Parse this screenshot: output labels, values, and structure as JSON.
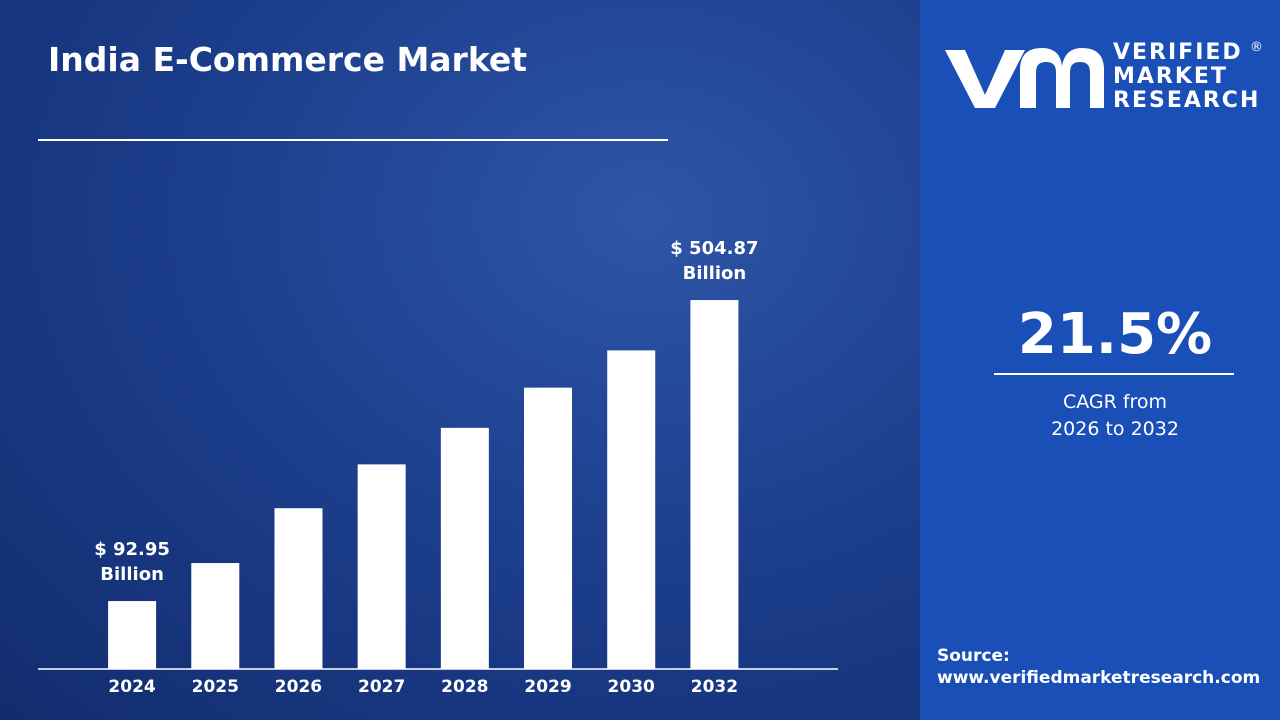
{
  "chart_data": {
    "type": "bar",
    "title": "India E-Commerce Market",
    "categories": [
      "2024",
      "2025",
      "2026",
      "2027",
      "2028",
      "2029",
      "2030",
      "2032"
    ],
    "values": [
      92.95,
      145,
      220,
      280,
      330,
      385,
      436,
      504.87
    ],
    "value_labels": [
      "$ 92.95\nBillion",
      null,
      null,
      null,
      null,
      null,
      null,
      "$ 504.87\nBillion"
    ],
    "color": "#ffffff",
    "ylim": [
      0,
      520
    ]
  },
  "logo": {
    "lines": [
      "VERIFIED",
      "MARKET",
      "RESEARCH"
    ],
    "mark": "®"
  },
  "stat": {
    "value": "21.5%",
    "caption": "CAGR from\n2026 to 2032"
  },
  "source": {
    "label": "Source:",
    "url": "www.verifiedmarketresearch.com"
  }
}
